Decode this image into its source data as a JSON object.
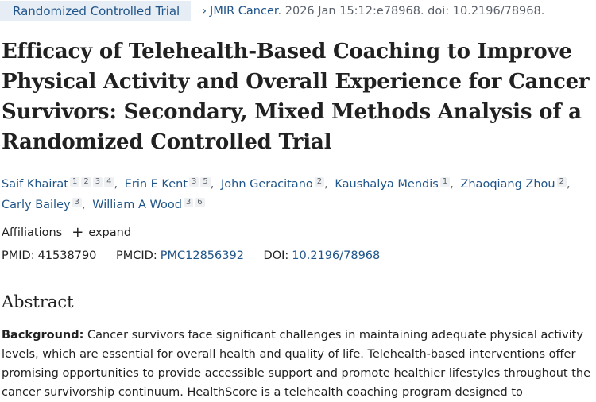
{
  "header": {
    "publication_type": "Randomized Controlled Trial",
    "journal": "JMIR Cancer",
    "citation_rest": ". 2026 Jan 15:12:e78968. doi: 10.2196/78968."
  },
  "article": {
    "title": "Efficacy of Telehealth-Based Coaching to Improve Physical Activity and Overall Experience for Cancer Survivors: Secondary, Mixed Methods Analysis of a Randomized Controlled Trial"
  },
  "authors": [
    {
      "name": "Saif Khairat",
      "affils": [
        "1",
        "2",
        "3",
        "4"
      ]
    },
    {
      "name": "Erin E Kent",
      "affils": [
        "3",
        "5"
      ]
    },
    {
      "name": "John Geracitano",
      "affils": [
        "2"
      ]
    },
    {
      "name": "Kaushalya Mendis",
      "affils": [
        "1"
      ]
    },
    {
      "name": "Zhaoqiang Zhou",
      "affils": [
        "2"
      ]
    },
    {
      "name": "Carly Bailey",
      "affils": [
        "3"
      ]
    },
    {
      "name": "William A Wood",
      "affils": [
        "3",
        "6"
      ]
    }
  ],
  "affiliations": {
    "label": "Affiliations",
    "expand_label": "expand"
  },
  "identifiers": {
    "pmid_label": "PMID:",
    "pmid": "41538790",
    "pmcid_label": "PMCID:",
    "pmcid": "PMC12856392",
    "doi_label": "DOI:",
    "doi": "10.2196/78968"
  },
  "abstract": {
    "heading": "Abstract",
    "background_label": "Background:",
    "background_text": "Cancer survivors face significant challenges in maintaining adequate physical activity levels, which are essential for overall health and quality of life. Telehealth-based interventions offer promising opportunities to provide accessible support and promote healthier lifestyles throughout the cancer survivorship continuum. HealthScore is a telehealth coaching program designed to"
  }
}
